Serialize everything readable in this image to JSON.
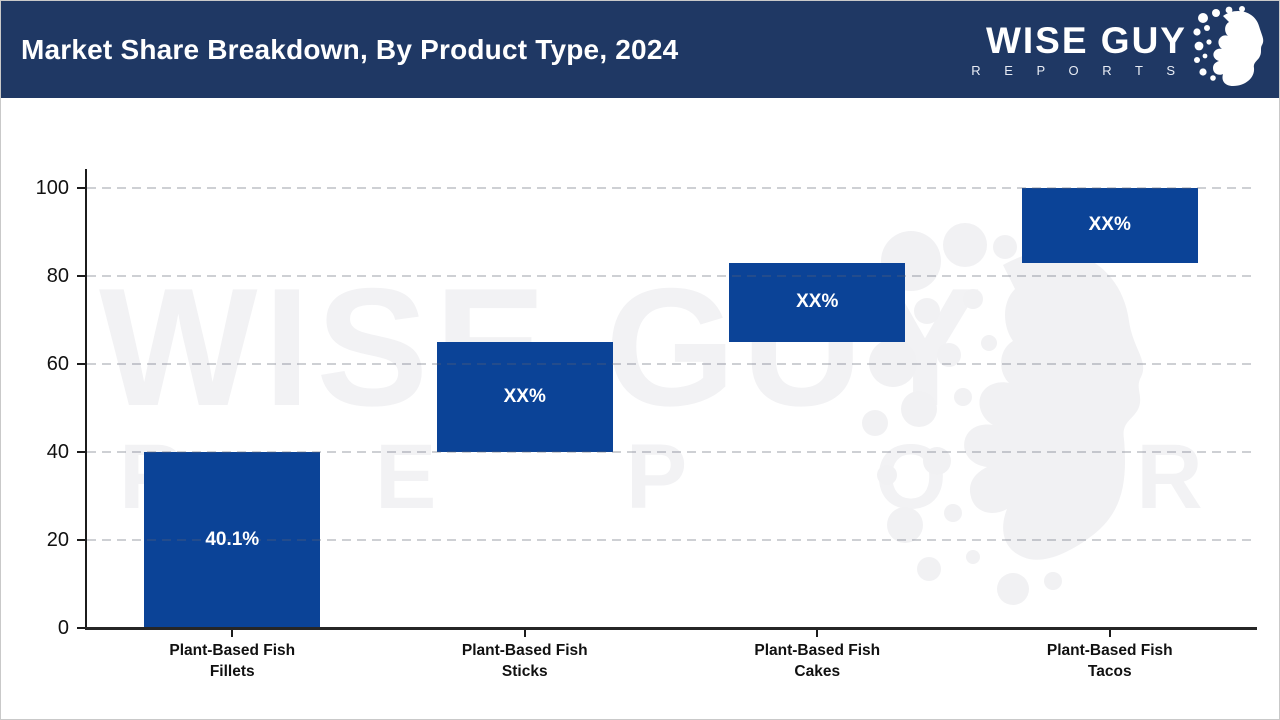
{
  "header": {
    "title": "Market Share Breakdown, By Product Type, 2024",
    "logo": {
      "line1": "WISE GUY",
      "line2": "R E P O R T S"
    }
  },
  "watermark": {
    "line1": "WISE GUY",
    "line2": "R E P O R T S"
  },
  "colors": {
    "header_bg": "#1f3864",
    "bar_fill": "#0b4397",
    "bar_label": "#ffffff",
    "axis": "#1c1c1c",
    "grid": "#d9d9d9"
  },
  "chart_data": {
    "type": "bar",
    "variant": "floating stacked percentage segments (waterfall style)",
    "title": "Market Share Breakdown, By Product Type, 2024",
    "xlabel": "",
    "ylabel": "",
    "ylim": [
      0,
      100
    ],
    "yticks": [
      0,
      20,
      40,
      60,
      80,
      100
    ],
    "grid": "horizontal dashed",
    "legend": "none",
    "categories": [
      [
        "Plant-Based Fish",
        "Fillets"
      ],
      [
        "Plant-Based Fish",
        "Sticks"
      ],
      [
        "Plant-Based Fish",
        "Cakes"
      ],
      [
        "Plant-Based Fish",
        "Tacos"
      ]
    ],
    "bars": [
      {
        "start": 0,
        "end": 40.1,
        "label": "40.1%"
      },
      {
        "start": 40.1,
        "end": 65,
        "label": "XX%"
      },
      {
        "start": 65,
        "end": 83,
        "label": "XX%"
      },
      {
        "start": 83,
        "end": 100,
        "label": "XX%"
      }
    ]
  }
}
